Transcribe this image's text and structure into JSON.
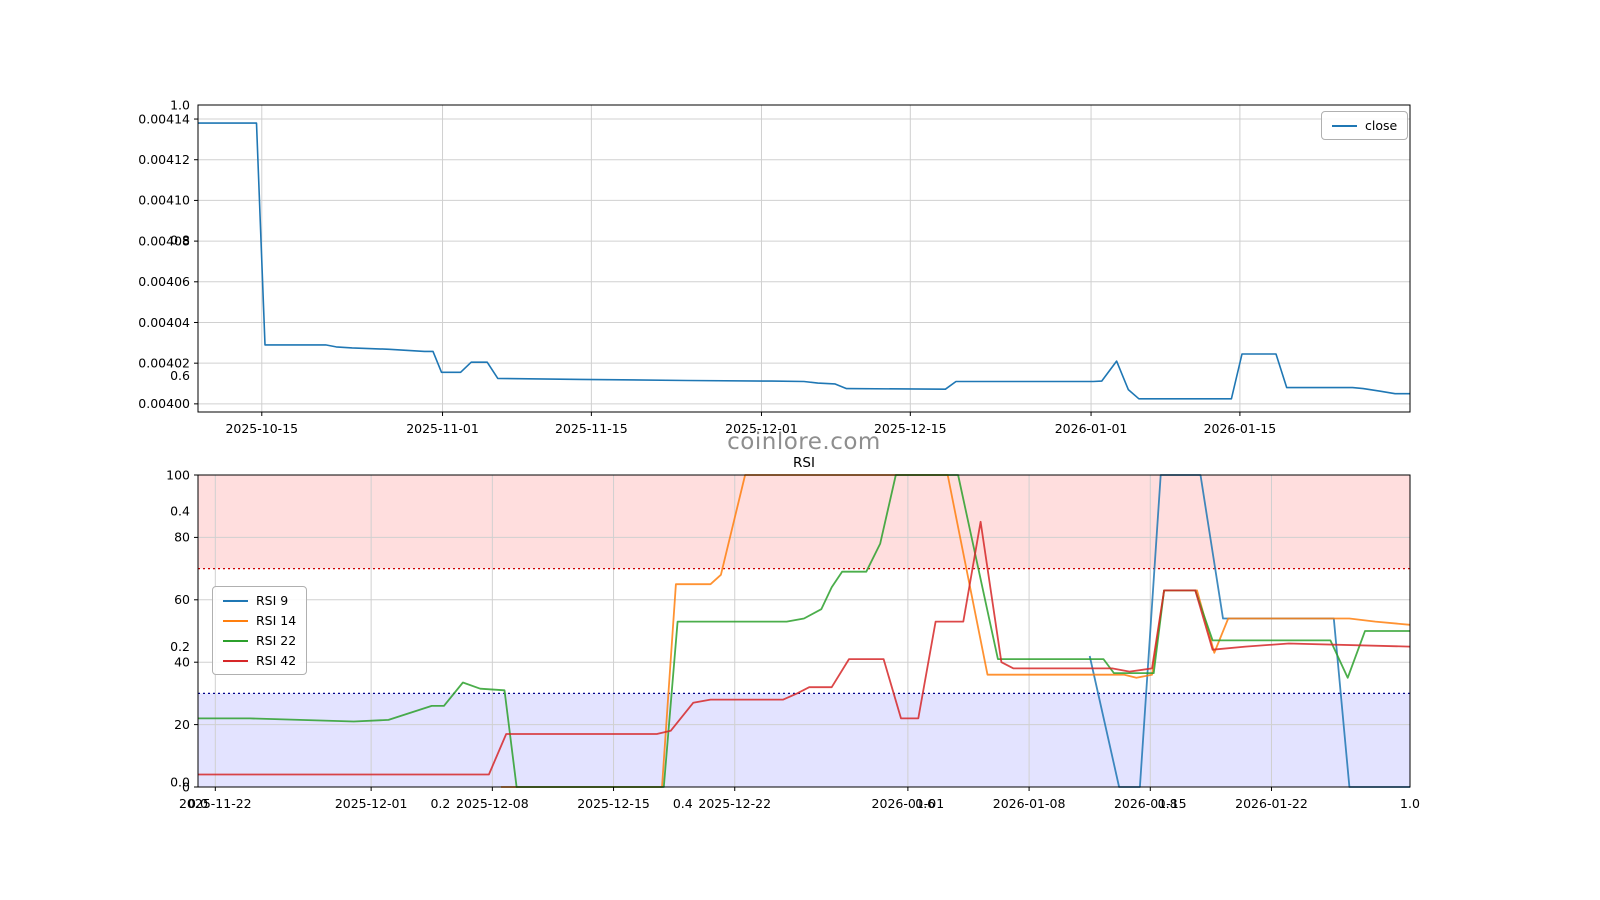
{
  "watermark": "coinlore.com",
  "figure": {
    "background": "#ffffff",
    "grid_color": "#d0d0d0"
  },
  "figure_axis_artifacts": {
    "y_ticks": [
      "1.0",
      "0.8",
      "0.6",
      "0.4",
      "0.2",
      "0.0"
    ],
    "x_ticks": [
      "0.0",
      "0.2",
      "0.4",
      "0.6",
      "0.8",
      "1.0"
    ]
  },
  "chart_data": [
    {
      "type": "line",
      "name": "price",
      "title": "",
      "legend_position": "upper right",
      "x_start_date": "2025-10-09",
      "x_end_date": "2026-01-31",
      "x_unit": "days from 2025-10-09",
      "xlim": [
        0,
        114
      ],
      "ylim": [
        0.003996,
        0.0041469
      ],
      "grid": true,
      "yticks": [
        {
          "v": 0.004,
          "label": "0.00400"
        },
        {
          "v": 0.00402,
          "label": "0.00402"
        },
        {
          "v": 0.00404,
          "label": "0.00404"
        },
        {
          "v": 0.00406,
          "label": "0.00406"
        },
        {
          "v": 0.00408,
          "label": "0.00408"
        },
        {
          "v": 0.0041,
          "label": "0.00410"
        },
        {
          "v": 0.00412,
          "label": "0.00412"
        },
        {
          "v": 0.00414,
          "label": "0.00414"
        }
      ],
      "xticks": [
        {
          "v": 6,
          "label": "2025-10-15"
        },
        {
          "v": 23,
          "label": "2025-11-01"
        },
        {
          "v": 37,
          "label": "2025-11-15"
        },
        {
          "v": 53,
          "label": "2025-12-01"
        },
        {
          "v": 67,
          "label": "2025-12-15"
        },
        {
          "v": 84,
          "label": "2026-01-01"
        },
        {
          "v": 98,
          "label": "2026-01-15"
        }
      ],
      "legend": [
        {
          "label": "close",
          "color": "#1f77b4"
        }
      ],
      "series": [
        {
          "name": "close",
          "color": "#1f77b4",
          "width": 1.6,
          "opacity": 1,
          "points": [
            [
              0,
              0.004138
            ],
            [
              5.5,
              0.004138
            ],
            [
              6.3,
              0.004029
            ],
            [
              12,
              0.004029
            ],
            [
              13,
              0.004028
            ],
            [
              14.5,
              0.0040275
            ],
            [
              18,
              0.0040268
            ],
            [
              21.3,
              0.0040258
            ],
            [
              22.1,
              0.0040258
            ],
            [
              22.9,
              0.0040155
            ],
            [
              24.7,
              0.0040155
            ],
            [
              25.7,
              0.0040205
            ],
            [
              27.2,
              0.0040205
            ],
            [
              28.2,
              0.0040125
            ],
            [
              36,
              0.004012
            ],
            [
              46,
              0.0040115
            ],
            [
              54,
              0.0040112
            ],
            [
              57,
              0.004011
            ],
            [
              58.3,
              0.0040102
            ],
            [
              59.9,
              0.0040098
            ],
            [
              61,
              0.0040075
            ],
            [
              70.3,
              0.0040072
            ],
            [
              71.3,
              0.004011
            ],
            [
              84.2,
              0.004011
            ],
            [
              85,
              0.0040112
            ],
            [
              86.4,
              0.004021
            ],
            [
              87.5,
              0.004007
            ],
            [
              88.5,
              0.0040025
            ],
            [
              97.2,
              0.0040025
            ],
            [
              98.2,
              0.0040245
            ],
            [
              101.4,
              0.0040245
            ],
            [
              102.4,
              0.004008
            ],
            [
              108.6,
              0.004008
            ],
            [
              109.6,
              0.0040075
            ],
            [
              111.2,
              0.0040062
            ],
            [
              112.6,
              0.004005
            ],
            [
              114,
              0.004005
            ]
          ]
        }
      ]
    },
    {
      "type": "line",
      "name": "rsi",
      "title": "RSI",
      "legend_position": "center left",
      "x_start_date": "2025-11-21",
      "x_end_date": "2026-01-30",
      "x_unit": "days from 2025-11-21",
      "xlim": [
        0,
        70
      ],
      "ylim": [
        0,
        100
      ],
      "grid": true,
      "yticks": [
        {
          "v": 0,
          "label": "0"
        },
        {
          "v": 20,
          "label": "20"
        },
        {
          "v": 40,
          "label": "40"
        },
        {
          "v": 60,
          "label": "60"
        },
        {
          "v": 80,
          "label": "80"
        },
        {
          "v": 100,
          "label": "100"
        }
      ],
      "xticks": [
        {
          "v": 1,
          "label": "2025-11-22"
        },
        {
          "v": 10,
          "label": "2025-12-01"
        },
        {
          "v": 17,
          "label": "2025-12-08"
        },
        {
          "v": 24,
          "label": "2025-12-15"
        },
        {
          "v": 31,
          "label": "2025-12-22"
        },
        {
          "v": 41,
          "label": "2026-01-01"
        },
        {
          "v": 48,
          "label": "2026-01-08"
        },
        {
          "v": 55,
          "label": "2026-01-15"
        },
        {
          "v": 62,
          "label": "2026-01-22"
        }
      ],
      "bands": [
        {
          "name": "overbought-band",
          "from": 70,
          "to": 100,
          "color": "#ff8a8a",
          "opacity": 0.28
        },
        {
          "name": "oversold-band",
          "from": 0,
          "to": 30,
          "color": "#8a8aff",
          "opacity": 0.24
        }
      ],
      "thresholds": [
        {
          "name": "overbought-line",
          "value": 70,
          "color": "#cc0000"
        },
        {
          "name": "oversold-line",
          "value": 30,
          "color": "#00008b"
        }
      ],
      "legend": [
        {
          "label": "RSI 9",
          "color": "#1f77b4"
        },
        {
          "label": "RSI 14",
          "color": "#ff7f0e"
        },
        {
          "label": "RSI 22",
          "color": "#2ca02c"
        },
        {
          "label": "RSI 42",
          "color": "#d62728"
        }
      ],
      "series": [
        {
          "name": "rsi-9",
          "color": "#1f77b4",
          "width": 1.8,
          "opacity": 0.85,
          "points": [
            [
              51.5,
              42
            ],
            [
              53.2,
              0
            ],
            [
              54.4,
              0
            ],
            [
              55.6,
              100
            ],
            [
              57.9,
              100
            ],
            [
              59.2,
              54
            ],
            [
              65.6,
              54
            ],
            [
              66.5,
              0
            ],
            [
              70,
              0
            ]
          ]
        },
        {
          "name": "rsi-14",
          "color": "#ff7f0e",
          "width": 1.8,
          "opacity": 0.85,
          "points": [
            [
              17.5,
              0
            ],
            [
              26.8,
              0
            ],
            [
              27.6,
              65
            ],
            [
              29.6,
              65
            ],
            [
              30.2,
              68
            ],
            [
              31.6,
              100
            ],
            [
              43.3,
              100
            ],
            [
              45.6,
              36
            ],
            [
              53.5,
              36
            ],
            [
              54.2,
              35
            ],
            [
              55.1,
              36
            ],
            [
              55.8,
              63
            ],
            [
              57.7,
              63
            ],
            [
              58.7,
              43
            ],
            [
              59.5,
              54
            ],
            [
              66.5,
              54
            ],
            [
              68,
              53
            ],
            [
              70,
              52
            ]
          ]
        },
        {
          "name": "rsi-22",
          "color": "#2ca02c",
          "width": 1.8,
          "opacity": 0.85,
          "points": [
            [
              0,
              22
            ],
            [
              3,
              22
            ],
            [
              9,
              21
            ],
            [
              11,
              21.5
            ],
            [
              13.5,
              26
            ],
            [
              14.2,
              26
            ],
            [
              15.3,
              33.5
            ],
            [
              16.3,
              31.5
            ],
            [
              17.7,
              31
            ],
            [
              18.4,
              0
            ],
            [
              26.9,
              0
            ],
            [
              27.7,
              53
            ],
            [
              34,
              53
            ],
            [
              35,
              54
            ],
            [
              36,
              57
            ],
            [
              36.6,
              64
            ],
            [
              37.2,
              69
            ],
            [
              38.6,
              69
            ],
            [
              39.4,
              78
            ],
            [
              40.3,
              100
            ],
            [
              43.9,
              100
            ],
            [
              46.2,
              41
            ],
            [
              52.3,
              41
            ],
            [
              52.9,
              36.5
            ],
            [
              55.2,
              36.5
            ],
            [
              55.8,
              63
            ],
            [
              57.6,
              63
            ],
            [
              58.6,
              47
            ],
            [
              65.4,
              47
            ],
            [
              66.4,
              35
            ],
            [
              67.4,
              50
            ],
            [
              70,
              50
            ]
          ]
        },
        {
          "name": "rsi-42",
          "color": "#d62728",
          "width": 1.8,
          "opacity": 0.85,
          "points": [
            [
              0,
              4
            ],
            [
              16.8,
              4
            ],
            [
              17.8,
              17
            ],
            [
              26.5,
              17
            ],
            [
              27.3,
              18
            ],
            [
              28.6,
              27
            ],
            [
              29.6,
              28
            ],
            [
              33.8,
              28
            ],
            [
              34.6,
              30
            ],
            [
              35.3,
              32
            ],
            [
              36.6,
              32
            ],
            [
              37.6,
              41
            ],
            [
              39.6,
              41
            ],
            [
              40.6,
              22
            ],
            [
              41.6,
              22
            ],
            [
              42.6,
              53
            ],
            [
              44.2,
              53
            ],
            [
              45.2,
              85
            ],
            [
              46.4,
              40
            ],
            [
              47.1,
              38
            ],
            [
              52.8,
              38
            ],
            [
              53.8,
              37
            ],
            [
              55.1,
              38
            ],
            [
              55.8,
              63
            ],
            [
              57.6,
              63
            ],
            [
              58.6,
              44
            ],
            [
              60.5,
              45
            ],
            [
              63,
              46
            ],
            [
              70,
              45
            ]
          ]
        }
      ]
    }
  ]
}
